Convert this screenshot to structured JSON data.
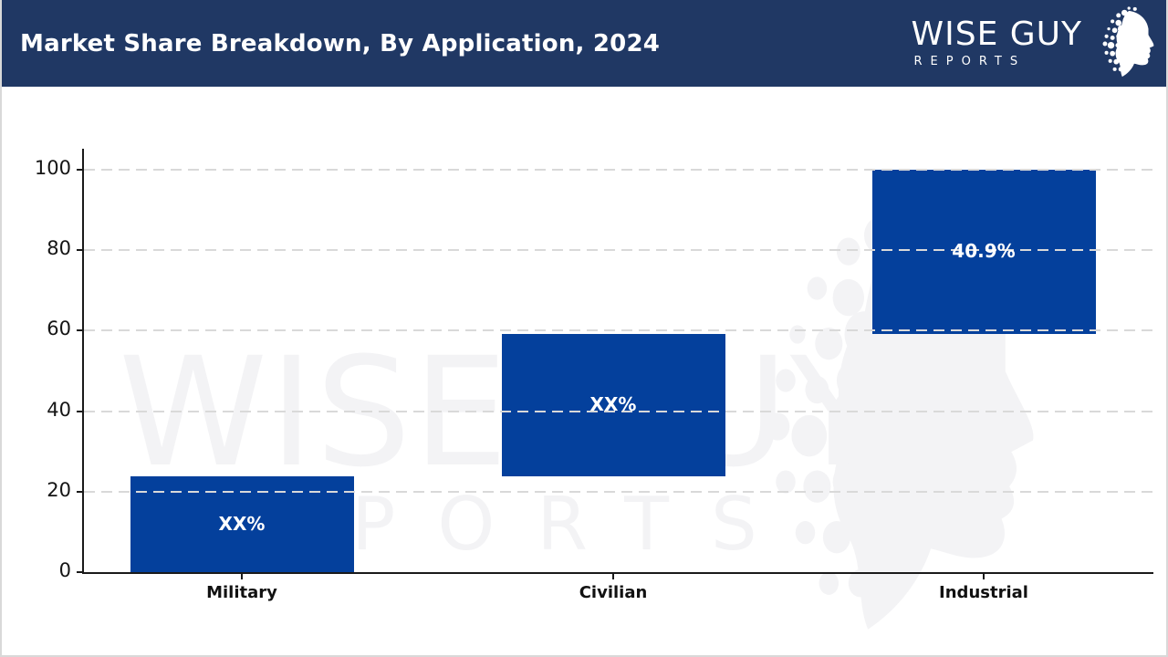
{
  "header": {
    "title": "Market Share Breakdown, By Application, 2024",
    "logo": {
      "line1": "WISE GUY",
      "line2": "REPORTS"
    }
  },
  "watermark": {
    "line1": "WISE GUY",
    "line2": "REPORTS"
  },
  "chart_data": {
    "type": "bar",
    "subtype": "waterfall-cumulative",
    "title": "Market Share Breakdown, By Application, 2024",
    "categories": [
      "Military",
      "Civilian",
      "Industrial"
    ],
    "series": [
      {
        "name": "Market Share %",
        "starts": [
          0,
          23.8,
          59.1
        ],
        "values": [
          23.8,
          35.3,
          40.9
        ]
      }
    ],
    "bar_labels": [
      "XX%",
      "XX%",
      "40.9%"
    ],
    "xlabel": "",
    "ylabel": "",
    "ylim": [
      0,
      100
    ],
    "yticks": [
      0,
      20,
      40,
      60,
      80,
      100
    ],
    "grid": "horizontal-dashed",
    "legend": "none",
    "colors": {
      "bar": "#04409c",
      "header_bg": "#203864",
      "grid": "#d9d9d9",
      "axis": "#1a1a1a",
      "bar_label_text": "#ffffff",
      "watermark": "#f3f3f5"
    }
  }
}
